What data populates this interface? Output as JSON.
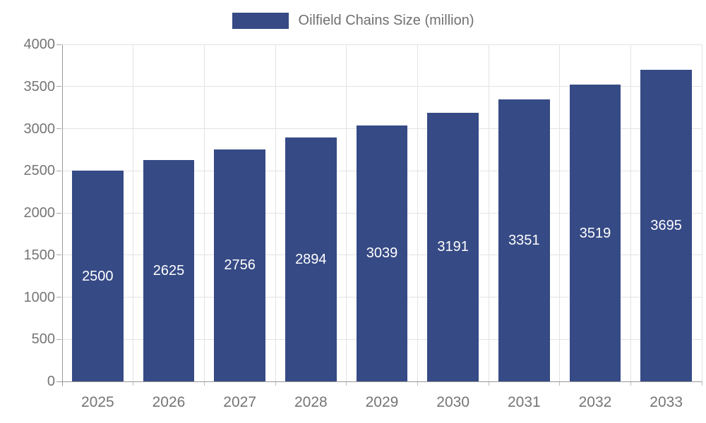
{
  "chart_data": {
    "type": "bar",
    "title": "Oilfield Chains Size (million)",
    "legend": {
      "label": "Oilfield Chains Size (million)",
      "position": "top-center"
    },
    "categories": [
      "2025",
      "2026",
      "2027",
      "2028",
      "2029",
      "2030",
      "2031",
      "2032",
      "2033"
    ],
    "series": [
      {
        "name": "Oilfield Chains Size (million)",
        "values": [
          2500,
          2625,
          2756,
          2894,
          3039,
          3191,
          3351,
          3519,
          3695
        ]
      }
    ],
    "xlabel": "",
    "ylabel": "",
    "ylim": [
      0,
      4000
    ],
    "yticks": [
      0,
      500,
      1000,
      1500,
      2000,
      2500,
      3000,
      3500,
      4000
    ],
    "grid": true,
    "value_labels_inside_bars": true,
    "colors": {
      "bar": "#364a85",
      "bar_value_label": "#ffffff",
      "axis_label": "#757575",
      "legend_text": "#707070",
      "gridline": "#e3e3e3",
      "axis_line": "#999999",
      "background": "#ffffff"
    }
  }
}
